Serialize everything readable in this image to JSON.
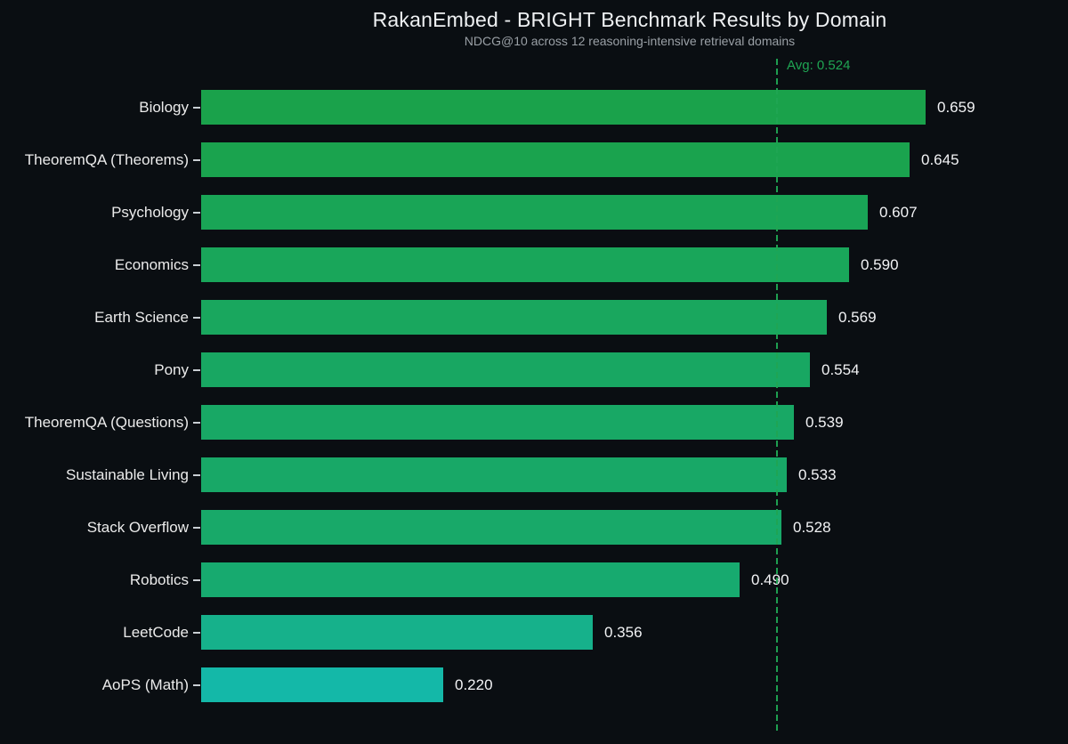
{
  "title": "RakanEmbed - BRIGHT Benchmark Results by Domain",
  "subtitle": "NDCG@10 across 12 reasoning-intensive retrieval domains",
  "avg_line": {
    "label": "Avg: 0.524",
    "value": 0.524,
    "color": "#1fa553"
  },
  "colors": {
    "background": "#0a0e12",
    "title_text": "#eef0f2",
    "subtitle_text": "#9aa0a6",
    "category_text": "#ebebeb",
    "value_text": "#f2f3f5",
    "tick": "#c9ced3",
    "bar_color_high": "#1aa24b",
    "bar_color_low": "#14b8a8"
  },
  "chart_data": {
    "type": "bar",
    "orientation": "horizontal",
    "title": "RakanEmbed - BRIGHT Benchmark Results by Domain",
    "subtitle": "NDCG@10 across 12 reasoning-intensive retrieval domains",
    "xlabel": "",
    "ylabel": "",
    "xlim": [
      0,
      0.78
    ],
    "grid": false,
    "legend": false,
    "average_reference_line": 0.524,
    "average_reference_label": "Avg: 0.524",
    "categories": [
      "Biology",
      "TheoremQA (Theorems)",
      "Psychology",
      "Economics",
      "Earth Science",
      "Pony",
      "TheoremQA (Questions)",
      "Sustainable Living",
      "Stack Overflow",
      "Robotics",
      "LeetCode",
      "AoPS (Math)"
    ],
    "values": [
      0.659,
      0.645,
      0.607,
      0.59,
      0.569,
      0.554,
      0.539,
      0.533,
      0.528,
      0.49,
      0.356,
      0.22
    ],
    "value_labels": [
      "0.659",
      "0.645",
      "0.607",
      "0.590",
      "0.569",
      "0.554",
      "0.539",
      "0.533",
      "0.528",
      "0.490",
      "0.356",
      "0.220"
    ],
    "bar_colors": [
      "#1aa24b",
      "#1aa34e",
      "#19a556",
      "#19a65a",
      "#19a75e",
      "#18a762",
      "#18a865",
      "#18a867",
      "#18a969",
      "#17aa6f",
      "#16b18b",
      "#14b8a8"
    ]
  }
}
